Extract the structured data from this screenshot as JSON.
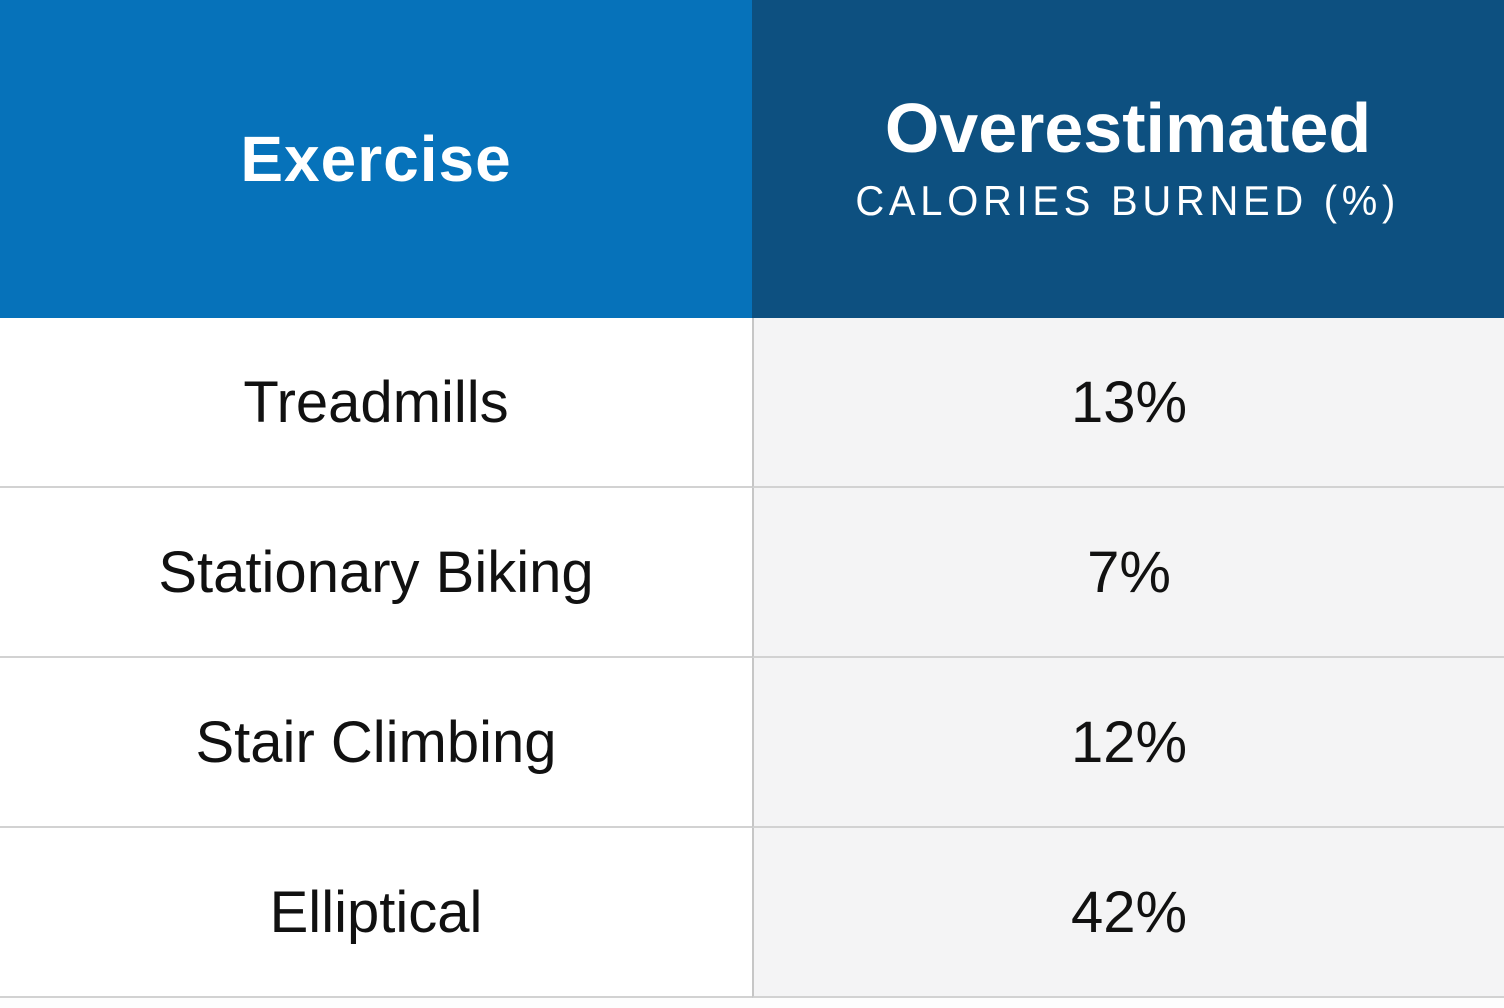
{
  "header": {
    "col1_label": "Exercise",
    "col2_title": "Overestimated",
    "col2_subtitle": "CALORIES BURNED (%)"
  },
  "rows": [
    {
      "exercise": "Treadmills",
      "value": "13%"
    },
    {
      "exercise": "Stationary Biking",
      "value": "7%"
    },
    {
      "exercise": "Stair Climbing",
      "value": "12%"
    },
    {
      "exercise": "Elliptical",
      "value": "42%"
    }
  ],
  "colors": {
    "header_left_bg": "#0672ba",
    "header_right_bg": "#0d5080",
    "header_text": "#ffffff",
    "body_left_bg": "#ffffff",
    "body_right_bg": "#f4f4f5",
    "row_divider": "#d2d2d2",
    "body_text": "#111111"
  },
  "chart_data": {
    "type": "table",
    "title": "Overestimated Calories Burned (%) by Exercise",
    "columns": [
      "Exercise",
      "Overestimated Calories Burned (%)"
    ],
    "categories": [
      "Treadmills",
      "Stationary Biking",
      "Stair Climbing",
      "Elliptical"
    ],
    "values": [
      13,
      7,
      12,
      42
    ],
    "unit": "%"
  }
}
